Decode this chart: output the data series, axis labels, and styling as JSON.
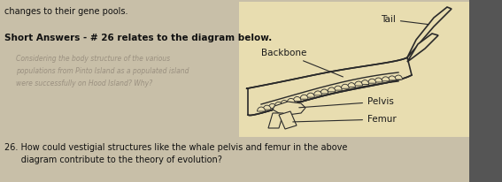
{
  "page_bg": "#c8bfa8",
  "top_text": "changes to their gene pools.",
  "header_text": "Short Answers - # 26 relates to the diagram below.",
  "faded_line1": "Considering the body structure of the various",
  "faded_line2": "populations from Pinto Island as a populated island",
  "faded_line3": "were successfully on Hood Island? Why?",
  "bottom_q1": "26. How could vestigial structures like the whale pelvis and femur in the above",
  "bottom_q2": "      diagram contribute to the theory of evolution?",
  "diagram_bg": "#e8ddb0",
  "line_color": "#2a2a2a",
  "label_color": "#1a1a1a"
}
